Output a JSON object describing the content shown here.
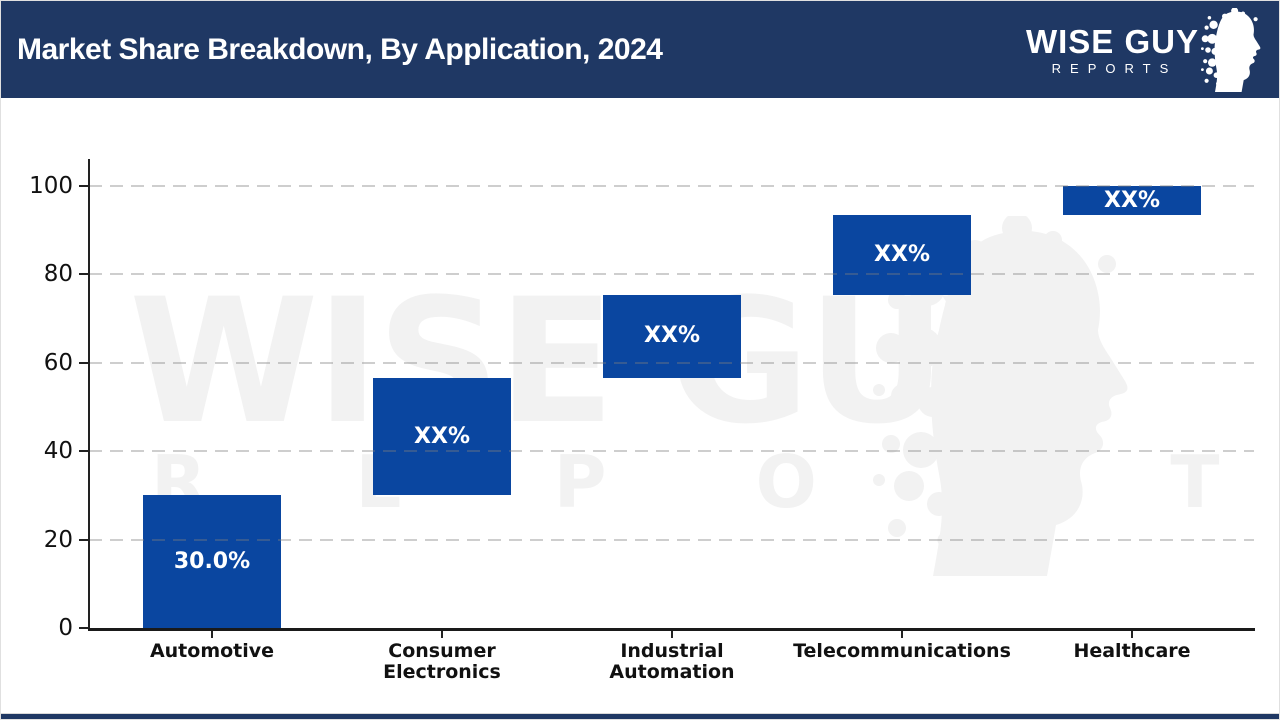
{
  "header": {
    "title": "Market Share Breakdown, By Application, 2024",
    "logo": {
      "wordmark": "WISE GUY",
      "subtext": "REPORTS",
      "subtext_spaced": "R E P O R T S"
    }
  },
  "watermark": {
    "wordmark": "WISE GUY",
    "subtext_spaced": "R E P O R T S"
  },
  "chart_data": {
    "type": "bar",
    "variant": "waterfall",
    "title": "Market Share Breakdown, By Application, 2024",
    "xlabel": "",
    "ylabel": "",
    "categories": [
      "Automotive",
      "Consumer Electronics",
      "Industrial Automation",
      "Telecommunications",
      "Healthcare"
    ],
    "category_label_lines": [
      [
        "Automotive"
      ],
      [
        "Consumer",
        "Electronics"
      ],
      [
        "Industrial",
        "Automation"
      ],
      [
        "Telecommunications"
      ],
      [
        "Healthcare"
      ]
    ],
    "segments": [
      {
        "category": "Automotive",
        "start": 0,
        "end": 30,
        "label": "30.0%"
      },
      {
        "category": "Consumer Electronics",
        "start": 30,
        "end": 56.6,
        "label": "XX%"
      },
      {
        "category": "Industrial Automation",
        "start": 56.6,
        "end": 75.4,
        "label": "XX%"
      },
      {
        "category": "Telecommunications",
        "start": 75.4,
        "end": 93.4,
        "label": "XX%"
      },
      {
        "category": "Healthcare",
        "start": 93.4,
        "end": 100,
        "label": "XX%"
      }
    ],
    "yticks": [
      0,
      20,
      40,
      60,
      80,
      100
    ],
    "ylim": [
      0,
      105.7
    ],
    "grid": true,
    "grid_style": "dashed",
    "legend": "none",
    "bar_color": "#0a46a0",
    "bar_label_color": "#ffffff"
  },
  "colors": {
    "header_bg": "#1f3864",
    "accent_blue": "#0a46a0",
    "axis": "#1a1a1a",
    "grid": "#d5d5d5",
    "watermark": "#f2f2f2"
  }
}
